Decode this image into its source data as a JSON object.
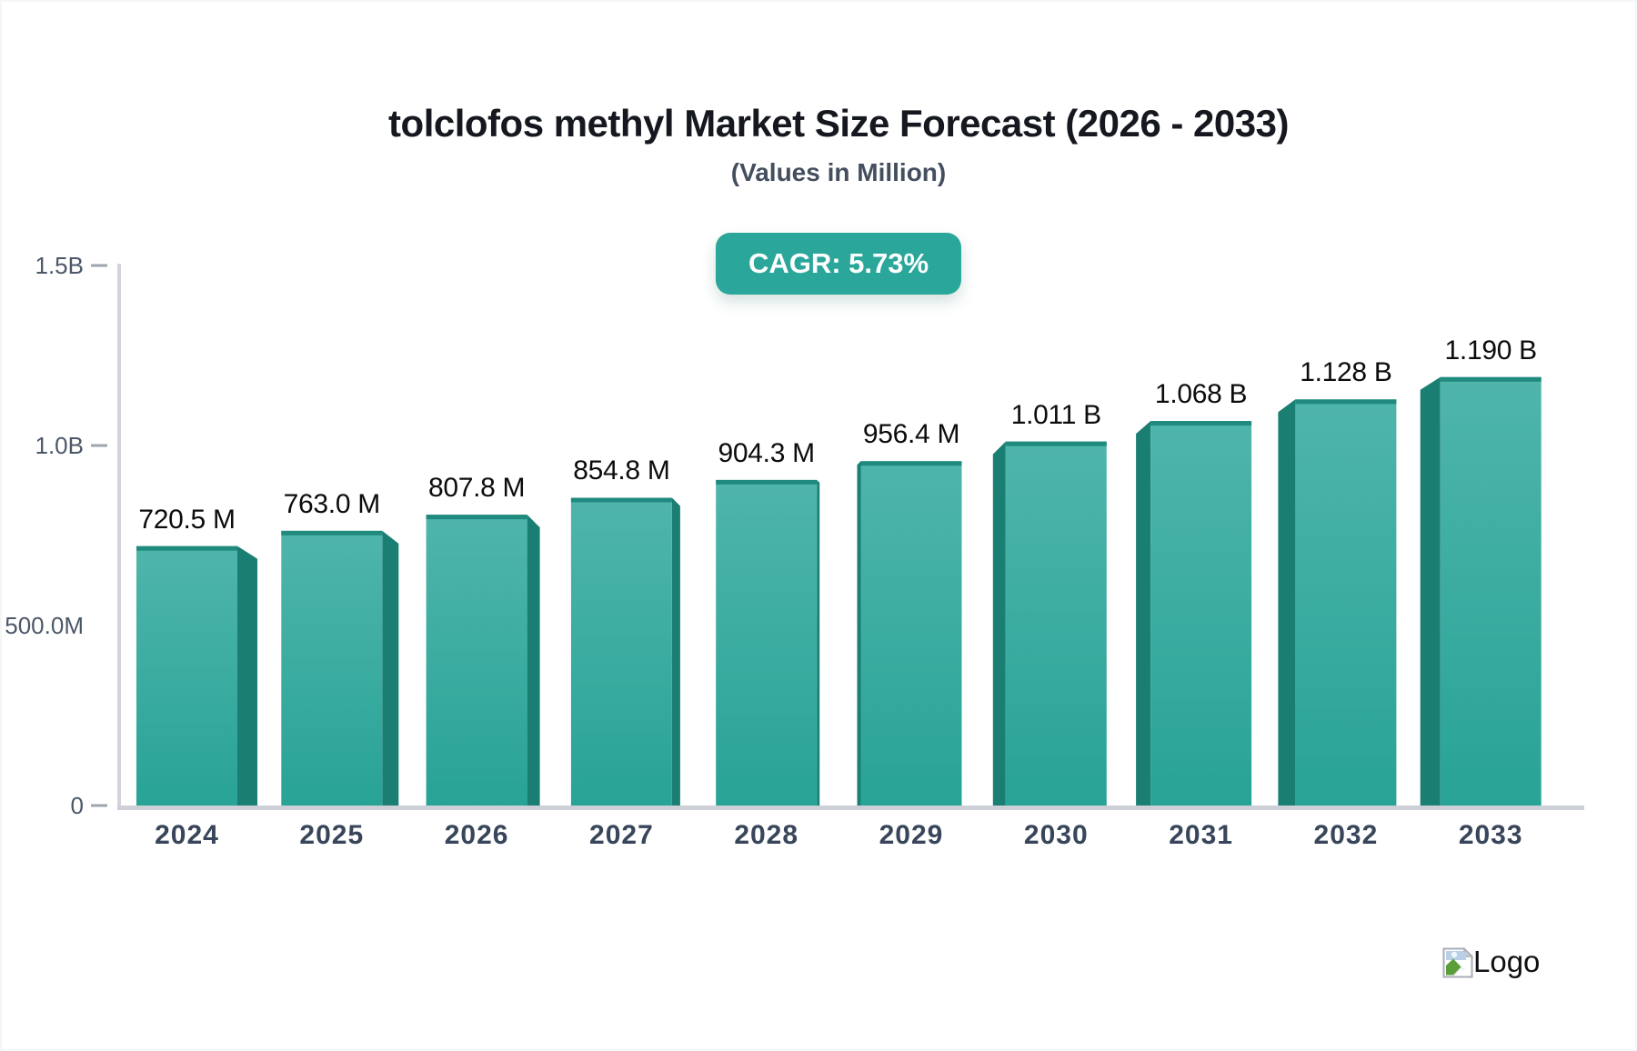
{
  "header": {
    "title": "tolclofos methyl Market Size Forecast (2026 - 2033)",
    "subtitle": "(Values in Million)",
    "cagr_label": "CAGR: 5.73%"
  },
  "chart_data": {
    "type": "bar",
    "title": "tolclofos methyl Market Size Forecast (2026 - 2033)",
    "subtitle": "(Values in Million)",
    "cagr_percent": 5.73,
    "categories": [
      "2024",
      "2025",
      "2026",
      "2027",
      "2028",
      "2029",
      "2030",
      "2031",
      "2032",
      "2033"
    ],
    "values_millions": [
      720.5,
      763.0,
      807.8,
      854.8,
      904.3,
      956.4,
      1011,
      1068,
      1128,
      1190
    ],
    "value_labels": [
      "720.5 M",
      "763.0 M",
      "807.8 M",
      "854.8 M",
      "904.3 M",
      "956.4 M",
      "1.011 B",
      "1.068 B",
      "1.128 B",
      "1.190 B"
    ],
    "y_axis": {
      "ylim_millions": [
        0,
        1500
      ],
      "ticks": [
        {
          "label": "1.5B",
          "value": 1500,
          "dash": true
        },
        {
          "label": "1.0B",
          "value": 1000,
          "dash": true
        },
        {
          "label": "500.0M",
          "value": 500,
          "dash": false
        },
        {
          "label": "0",
          "value": 0,
          "dash": true
        }
      ]
    },
    "grid": false,
    "legend": "none",
    "colors": {
      "bar_front_top": "#4fb5ab",
      "bar_front_bottom": "#28a396",
      "bar_side": "#1b7e73",
      "bar_top_edge": "#218a7e",
      "badge_bg": "#2aa79a",
      "badge_text": "#ffffff",
      "axis_line": "#d3d5db",
      "baseline": "#cdd0d6",
      "tick_dash": "#9ea5b0",
      "y_label": "#4c5768",
      "x_label": "#39455a",
      "value_label": "#0b0c0e",
      "title": "#16181f",
      "subtitle": "#444e5e"
    }
  },
  "footer": {
    "logo_alt": "Logo"
  }
}
